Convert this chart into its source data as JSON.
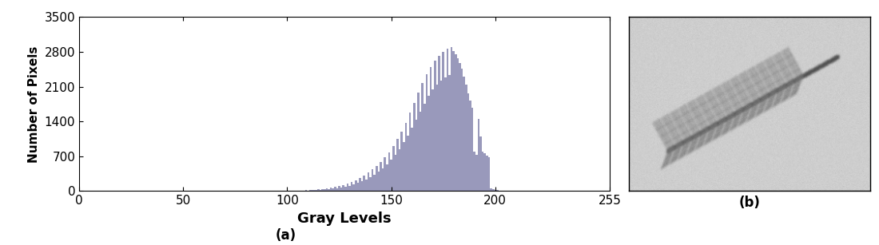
{
  "title_a": "(a)",
  "title_b": "(b)",
  "xlabel": "Gray Levels",
  "ylabel": "Number of Pixels",
  "xlim": [
    0,
    255
  ],
  "ylim": [
    0,
    3500
  ],
  "xticks": [
    0,
    50,
    100,
    150,
    200,
    255
  ],
  "yticks": [
    0,
    700,
    1400,
    2100,
    2800,
    3500
  ],
  "bar_color": "#9999bb",
  "background_color": "#ffffff",
  "hist_values": [
    0,
    0,
    0,
    0,
    0,
    0,
    0,
    0,
    0,
    0,
    0,
    0,
    0,
    0,
    0,
    0,
    0,
    0,
    0,
    0,
    0,
    0,
    0,
    0,
    0,
    0,
    0,
    0,
    0,
    0,
    0,
    0,
    0,
    0,
    0,
    0,
    0,
    0,
    0,
    0,
    0,
    0,
    0,
    0,
    0,
    0,
    0,
    0,
    0,
    0,
    0,
    0,
    0,
    0,
    0,
    0,
    0,
    0,
    0,
    0,
    0,
    0,
    0,
    0,
    0,
    0,
    0,
    0,
    0,
    0,
    0,
    0,
    0,
    0,
    0,
    0,
    0,
    0,
    0,
    0,
    0,
    0,
    0,
    0,
    0,
    0,
    0,
    0,
    0,
    0,
    0,
    0,
    0,
    0,
    0,
    0,
    0,
    0,
    0,
    0,
    5,
    8,
    6,
    10,
    7,
    12,
    8,
    14,
    10,
    18,
    14,
    22,
    18,
    28,
    22,
    35,
    28,
    45,
    35,
    55,
    42,
    65,
    50,
    80,
    62,
    100,
    75,
    125,
    90,
    155,
    110,
    185,
    140,
    220,
    170,
    265,
    200,
    310,
    240,
    370,
    280,
    440,
    330,
    510,
    390,
    590,
    460,
    680,
    540,
    780,
    630,
    900,
    730,
    1050,
    850,
    1200,
    980,
    1380,
    1120,
    1580,
    1280,
    1780,
    1440,
    1980,
    1600,
    2180,
    1760,
    2350,
    1920,
    2500,
    2050,
    2620,
    2150,
    2720,
    2230,
    2800,
    2290,
    2860,
    2330,
    2900,
    2820,
    2760,
    2680,
    2580,
    2460,
    2300,
    2140,
    1970,
    1820,
    1670,
    800,
    730,
    1450,
    1100,
    800,
    760,
    720,
    680,
    50,
    40,
    30,
    20,
    15,
    10,
    8,
    5,
    3,
    2,
    1,
    1,
    0,
    0,
    0,
    0,
    0,
    0,
    0,
    0,
    0,
    0,
    0,
    0,
    0,
    0,
    0,
    0,
    0,
    0,
    0,
    0,
    0,
    0,
    0,
    0,
    0,
    0,
    0,
    0,
    0,
    0,
    0,
    0,
    0,
    0,
    0,
    0,
    0,
    0,
    0,
    0,
    0,
    0,
    0,
    0,
    0,
    0
  ]
}
